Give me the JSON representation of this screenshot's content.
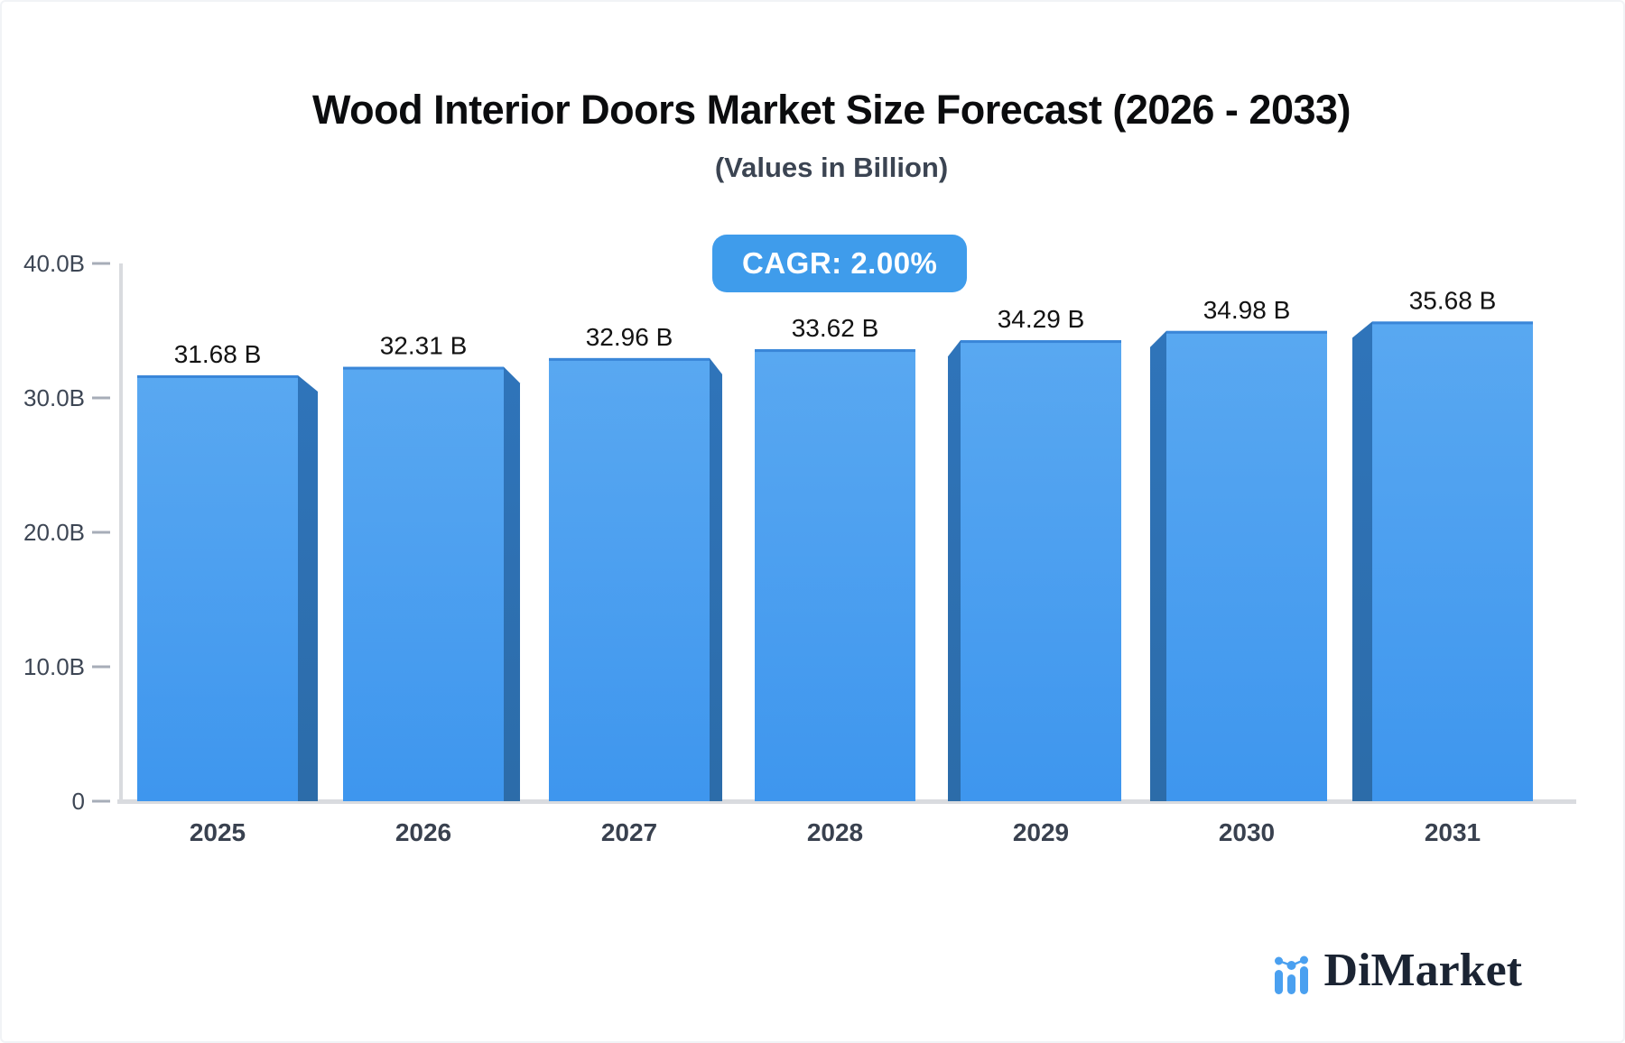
{
  "header": {
    "title": "Wood Interior Doors Market Size Forecast (2026 - 2033)",
    "subtitle": "(Values in Billion)"
  },
  "badge": {
    "label": "CAGR: 2.00%",
    "bg": "#3f9ceb",
    "text_color": "#ffffff"
  },
  "chart_data": {
    "type": "bar",
    "title": "Wood Interior Doors Market Size Forecast (2026 - 2033)",
    "subtitle": "(Values in Billion)",
    "categories": [
      "2025",
      "2026",
      "2027",
      "2028",
      "2029",
      "2030",
      "2031"
    ],
    "values": [
      31.68,
      32.31,
      32.96,
      33.62,
      34.29,
      34.98,
      35.68
    ],
    "value_labels": [
      "31.68 B",
      "32.31 B",
      "32.96 B",
      "33.62 B",
      "34.29 B",
      "34.98 B",
      "35.68 B"
    ],
    "annotation": "CAGR: 2.00%",
    "xlabel": "",
    "ylabel": "",
    "ylim": [
      0,
      40
    ],
    "yticks": [
      {
        "v": 0,
        "label": "0"
      },
      {
        "v": 10,
        "label": "10.0B"
      },
      {
        "v": 20,
        "label": "20.0B"
      },
      {
        "v": 30,
        "label": "30.0B"
      },
      {
        "v": 40,
        "label": "40.0B"
      }
    ],
    "grid": false,
    "legend": "none",
    "style": "3d-perspective-bars",
    "colors": {
      "bar_top": "#59a8f1",
      "bar_bottom": "#3e96ee",
      "bar_top_edge": "#3a86d8",
      "bar_side_top": "#2f74ba",
      "bar_side_bottom": "#2c6ca9",
      "axis_line": "#d9dbdf",
      "tick_dash": "#a7adb8",
      "axis_label": "#3d4654",
      "value_label": "#131313",
      "year_label": "#39414f"
    }
  },
  "logo": {
    "text": "DiMarket",
    "icon": "mini-bar-chart-icon",
    "text_color": "#1b2433",
    "accent": "#4aa0f0"
  }
}
